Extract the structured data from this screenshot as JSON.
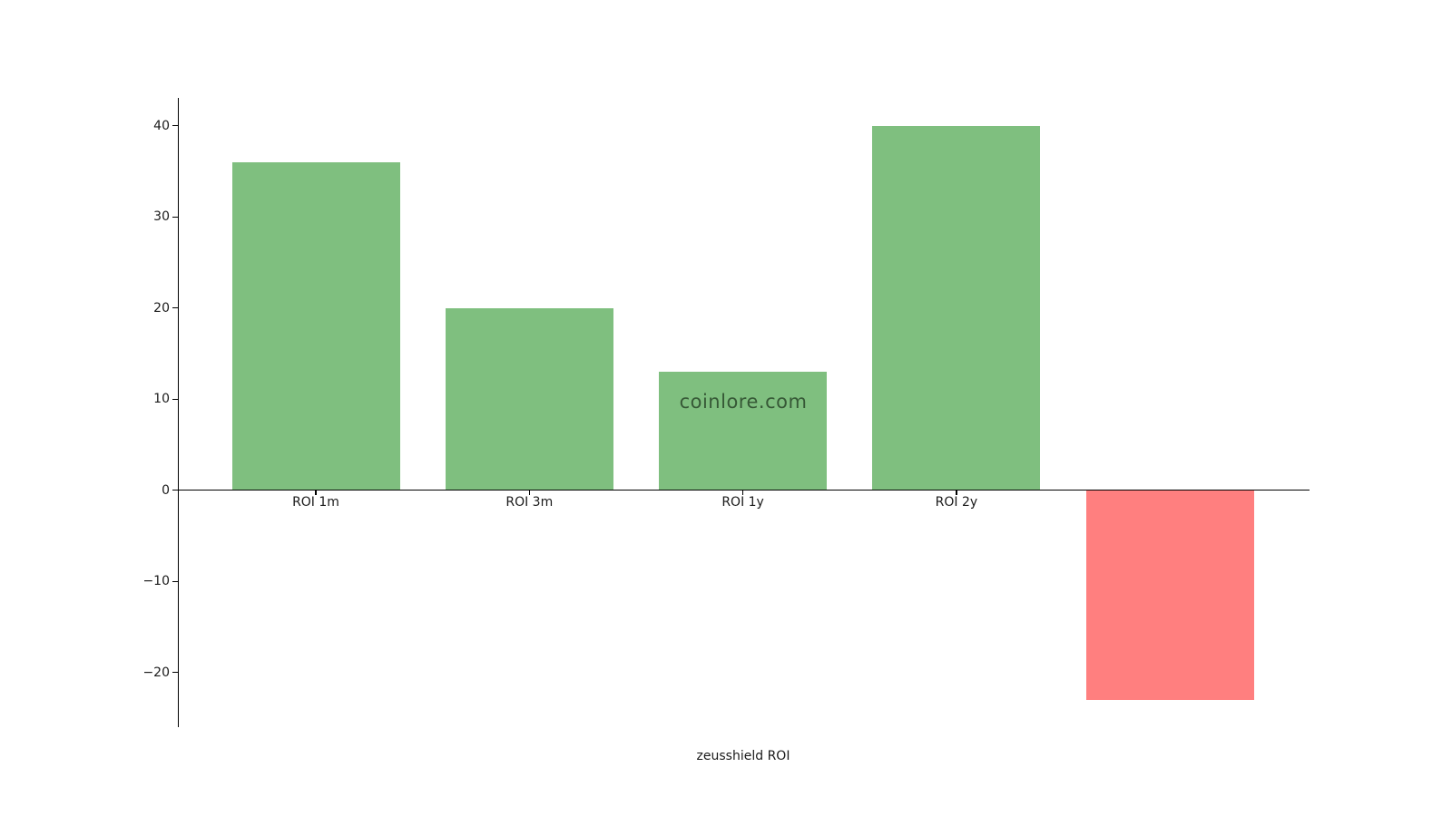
{
  "chart_data": {
    "type": "bar",
    "title": "",
    "xlabel": "zeusshield ROI",
    "ylabel": "",
    "watermark": "coinlore.com",
    "categories": [
      "ROI 1m",
      "ROI 3m",
      "ROI 1y",
      "ROI 2y",
      ""
    ],
    "values": [
      36,
      20,
      13,
      40,
      -23
    ],
    "positive_color": "#7fbf7f",
    "negative_color": "#ff7f7f",
    "yticks": [
      40,
      30,
      20,
      10,
      0,
      -10,
      -20
    ],
    "ytick_labels": [
      "40",
      "30",
      "20",
      "10",
      "0",
      "−10",
      "−20"
    ],
    "ylim": [
      -26,
      43
    ],
    "grid": false,
    "legend": null,
    "axis_color": "#000000"
  }
}
